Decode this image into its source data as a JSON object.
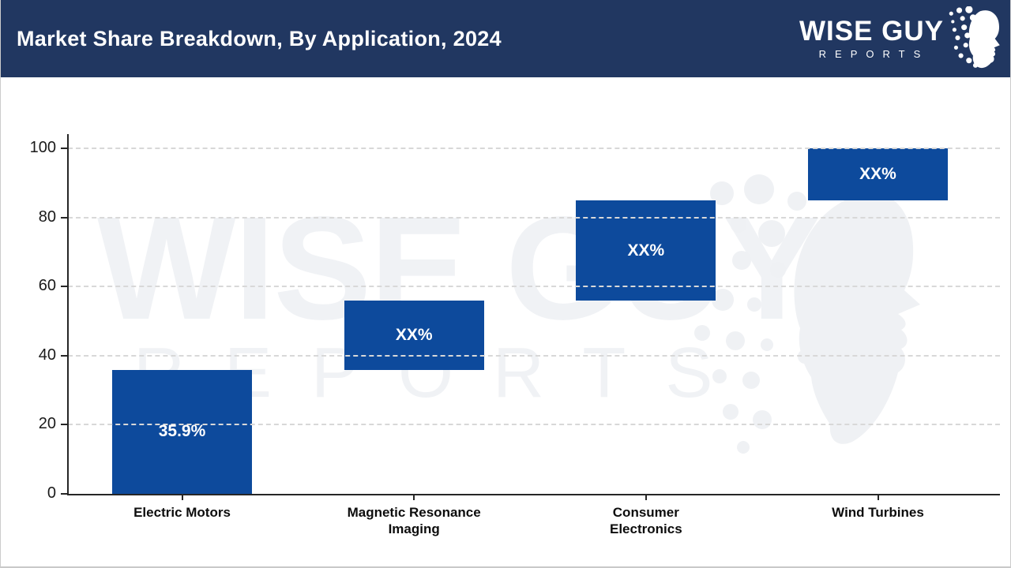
{
  "header": {
    "title": "Market Share Breakdown, By Application, 2024",
    "logo": {
      "line1": "WISE GUY",
      "line2": "REPORTS"
    }
  },
  "watermark": {
    "line1": "WISE GUY",
    "line2": "REPORTS"
  },
  "chart_data": {
    "type": "bar",
    "variant": "waterfall",
    "title": "Market Share Breakdown, By Application, 2024",
    "categories": [
      "Electric Motors",
      "Magnetic Resonance Imaging",
      "Consumer Electronics",
      "Wind Turbines"
    ],
    "categories_lines": [
      [
        "Electric Motors"
      ],
      [
        "Magnetic Resonance",
        "Imaging"
      ],
      [
        "Consumer",
        "Electronics"
      ],
      [
        "Wind Turbines"
      ]
    ],
    "segments": [
      {
        "category": "Electric Motors",
        "start": 0,
        "end": 35.9,
        "label": "35.9%"
      },
      {
        "category": "Magnetic Resonance Imaging",
        "start": 35.9,
        "end": 55.9,
        "label": "XX%"
      },
      {
        "category": "Consumer Electronics",
        "start": 55.9,
        "end": 84.9,
        "label": "XX%"
      },
      {
        "category": "Wind Turbines",
        "start": 84.9,
        "end": 100,
        "label": "XX%"
      }
    ],
    "xlabel": "",
    "ylabel": "",
    "ylim": [
      0,
      100
    ],
    "yticks": [
      0,
      20,
      40,
      60,
      80,
      100
    ],
    "grid": "horizontal-dashed-over-bars",
    "legend": "none"
  },
  "colors": {
    "header_bg": "#213761",
    "bar": "#0d4a9c",
    "grid": "#d8d8d8",
    "axis": "#262626",
    "bar_label": "#ffffff",
    "watermark": "#f0f2f5"
  }
}
